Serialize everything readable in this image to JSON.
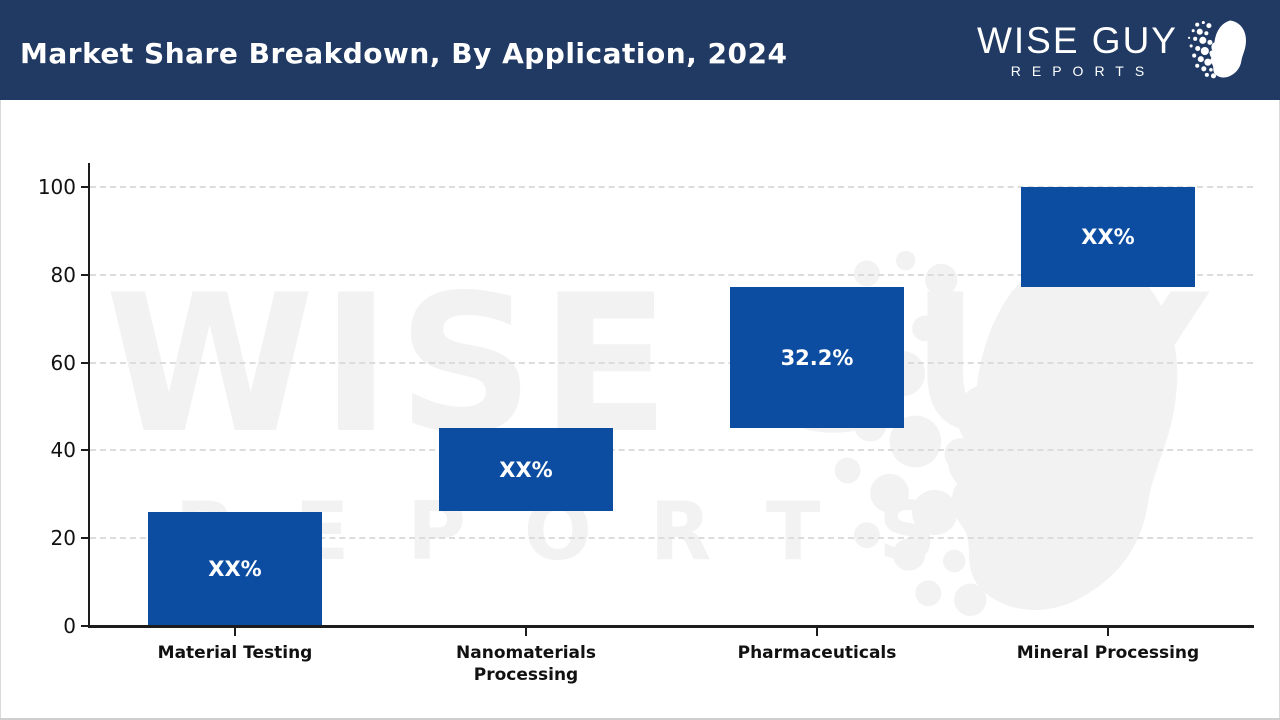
{
  "header": {
    "title": "Market Share Breakdown, By Application, 2024",
    "logo": {
      "line1": "WISE GUY",
      "line2": "REPORTS"
    }
  },
  "watermark": {
    "line1": "WISE GUY",
    "line2": "REPORTS"
  },
  "chart_data": {
    "type": "bar",
    "subtype": "waterfall",
    "title": "Market Share Breakdown, By Application, 2024",
    "categories": [
      "Material Testing",
      "Nanomaterials Processing",
      "Pharmaceuticals",
      "Mineral Processing"
    ],
    "segments": [
      {
        "category": "Material Testing",
        "start": 0,
        "end": 26,
        "label": "XX%"
      },
      {
        "category": "Nanomaterials Processing",
        "start": 26,
        "end": 45,
        "label": "XX%"
      },
      {
        "category": "Pharmaceuticals",
        "start": 45,
        "end": 77.2,
        "label": "32.2%"
      },
      {
        "category": "Mineral Processing",
        "start": 77.2,
        "end": 100,
        "label": "XX%"
      }
    ],
    "xlabel": "",
    "ylabel": "",
    "ylim": [
      0,
      100
    ],
    "yticks": [
      0,
      20,
      40,
      60,
      80,
      100
    ],
    "grid": "dashed-horizontal",
    "legend": "none",
    "colors": {
      "bar": "#0c4da2",
      "bar_label": "#ffffff",
      "axis": "#1c1c1c",
      "grid": "#dcdcdc",
      "header_bg": "#203a64",
      "watermark": "#f2f2f2"
    }
  }
}
